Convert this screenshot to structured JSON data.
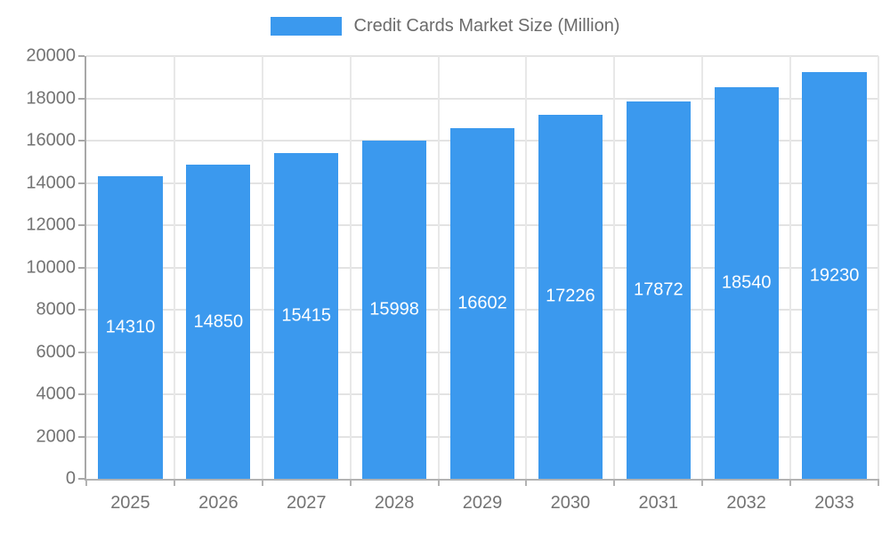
{
  "chart_data": {
    "type": "bar",
    "title": "Credit Cards Market Size (Million)",
    "categories": [
      "2025",
      "2026",
      "2027",
      "2028",
      "2029",
      "2030",
      "2031",
      "2032",
      "2033"
    ],
    "values": [
      14310,
      14850,
      15415,
      15998,
      16602,
      17226,
      17872,
      18540,
      19230
    ],
    "xlabel": "",
    "ylabel": "",
    "ylim": [
      0,
      20000
    ],
    "ytick_step": 2000,
    "grid": true,
    "legend_position": "top",
    "data_labels": "inside-center",
    "colors": {
      "bar": "#3b99ee",
      "hgrid": "#e3e3e3",
      "vgrid": "#e8e8e8",
      "y_axis": "#a8a8a8",
      "x_axis": "#b3b3b3",
      "tick_text": "#737373",
      "title_text": "#6b6b6b",
      "bar_label_text": "#ffffff",
      "background": "#ffffff"
    }
  }
}
